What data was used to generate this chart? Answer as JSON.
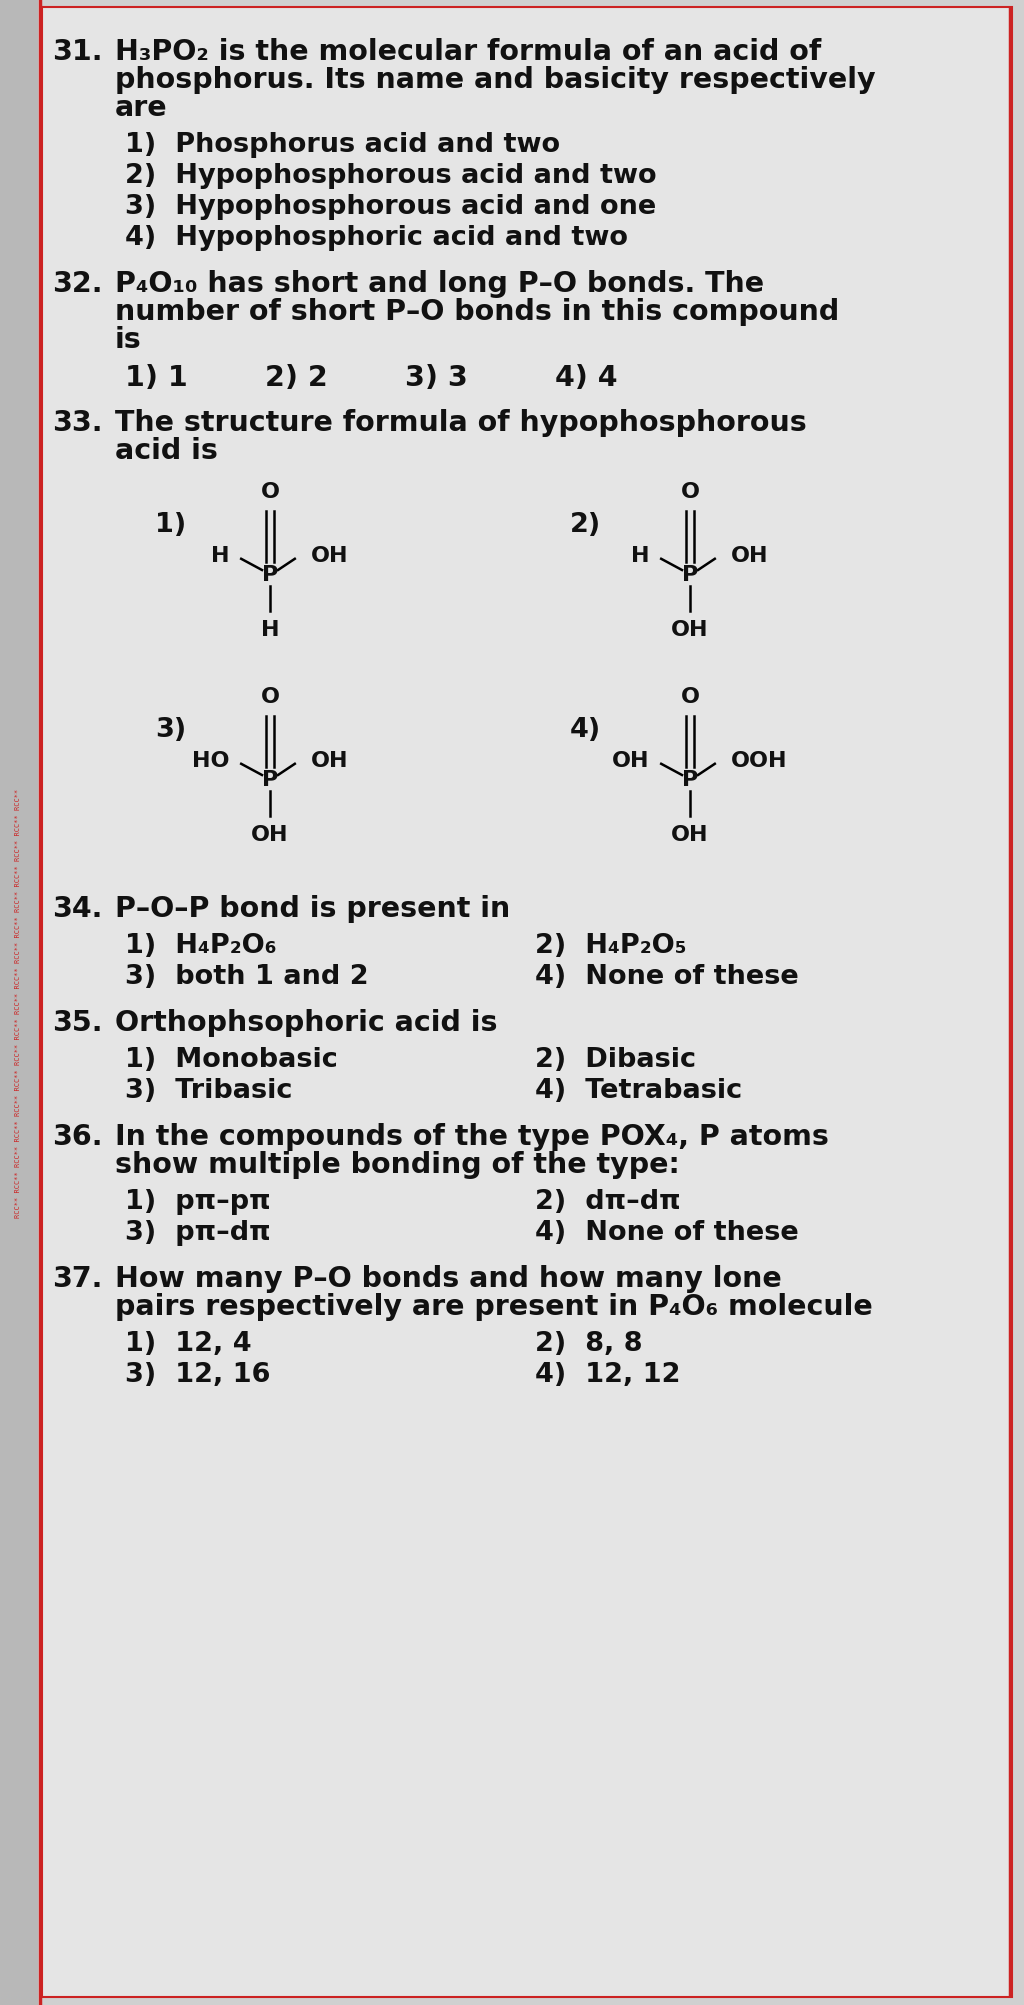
{
  "bg_color": "#d0d0d0",
  "card_color": "#e5e5e5",
  "border_color": "#cc2222",
  "text_color": "#111111",
  "q31_num": "31.",
  "q31_line1": "H₃PO₂ is the molecular formula of an acid of",
  "q31_line2": "phosphorus. Its name and basicity respectively",
  "q31_line3": "are",
  "q31_opts": [
    "1)  Phosphorus acid and two",
    "2)  Hypophosphorous acid and two",
    "3)  Hypophosphorous acid and one",
    "4)  Hypophosphoric acid and two"
  ],
  "q32_num": "32.",
  "q32_line1": "P₄O₁₀ has short and long P–O bonds. The",
  "q32_line2": "number of short P–O bonds in this compound",
  "q32_line3": "is",
  "q32_opts_inline": [
    "1) 1",
    "2) 2",
    "3) 3",
    "4) 4"
  ],
  "q33_num": "33.",
  "q33_line1": "The structure formula of hypophosphorous",
  "q33_line2": "acid is",
  "q34_num": "34.",
  "q34_text": "P–O–P bond is present in",
  "q34_opts": [
    [
      "1)  H₄P₂O₆",
      "2)  H₄P₂O₅"
    ],
    [
      "3)  both 1 and 2",
      "4)  None of these"
    ]
  ],
  "q35_num": "35.",
  "q35_text": "Orthophsophoric acid is",
  "q35_opts": [
    [
      "1)  Monobasic",
      "2)  Dibasic"
    ],
    [
      "3)  Tribasic",
      "4)  Tetrabasic"
    ]
  ],
  "q36_num": "36.",
  "q36_line1": "In the compounds of the type POX₄, P atoms",
  "q36_line2": "show multiple bonding of the type:",
  "q36_opts": [
    [
      "1)  pπ–pπ",
      "2)  dπ–dπ"
    ],
    [
      "3)  pπ–dπ",
      "4)  None of these"
    ]
  ],
  "q37_num": "37.",
  "q37_line1": "How many P–O bonds and how many lone",
  "q37_line2": "pairs respectively are present in P₄O₆ molecule",
  "q37_opts": [
    [
      "1)  12, 4",
      "2)  8, 8"
    ],
    [
      "3)  12, 16",
      "4)  12, 12"
    ]
  ],
  "sidebar_color": "#b8b8b8"
}
